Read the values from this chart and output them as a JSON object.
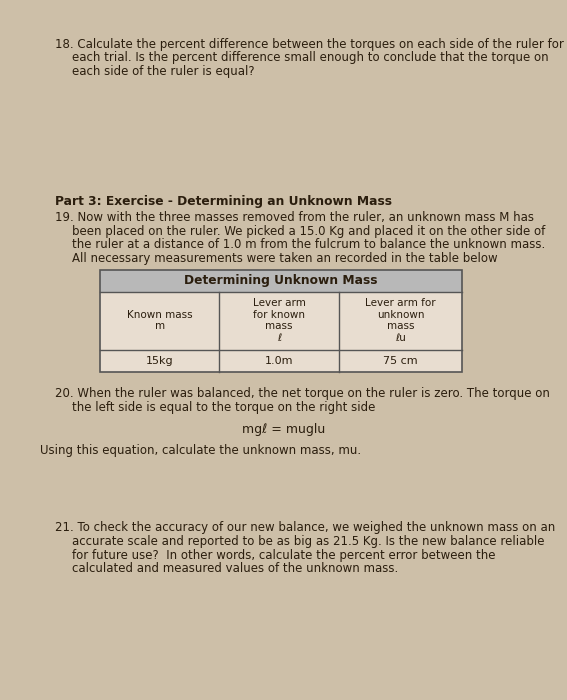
{
  "bg_color": "#cdbfa8",
  "text_color": "#2b1e0e",
  "q18_line1": "18. Calculate the percent difference between the torques on each side of the ruler for",
  "q18_line2": "each trial. Is the percent difference small enough to conclude that the torque on",
  "q18_line3": "each side of the ruler is equal?",
  "part3_title": "Part 3: Exercise - Determining an Unknown Mass",
  "q19_line1": "19. Now with the three masses removed from the ruler, an unknown mass M has",
  "q19_line2": "been placed on the ruler. We picked a 15.0 Kg and placed it on the other side of",
  "q19_line3": "the ruler at a distance of 1.0 m from the fulcrum to balance the unknown mass.",
  "q19_line4": "All necessary measurements were taken an recorded in the table below",
  "table_title": "Determining Unknown Mass",
  "table_header_bg": "#b8b8b8",
  "table_border_color": "#555555",
  "table_bg": "#e8ddd0",
  "col1_lines": [
    "Known mass",
    "m"
  ],
  "col2_lines": [
    "Lever arm",
    "for known",
    "mass",
    "ℓ"
  ],
  "col3_lines": [
    "Lever arm for",
    "unknown",
    "mass",
    "ℓu"
  ],
  "row1": [
    "15kg",
    "1.0m",
    "75 cm"
  ],
  "q20_line1": "20. When the ruler was balanced, the net torque on the ruler is zero. The torque on",
  "q20_line2": "the left side is equal to the torque on the right side",
  "q20_eq": "mgℓ = muglu",
  "q20_sub": "Using this equation, calculate the unknown mass, mu.",
  "q21_line1": "21. To check the accuracy of our new balance, we weighed the unknown mass on an",
  "q21_line2": "accurate scale and reported to be as big as 21.5 Kg. Is the new balance reliable",
  "q21_line3": "for future use?  In other words, calculate the percent error between the",
  "q21_line4": "calculated and measured values of the unknown mass."
}
